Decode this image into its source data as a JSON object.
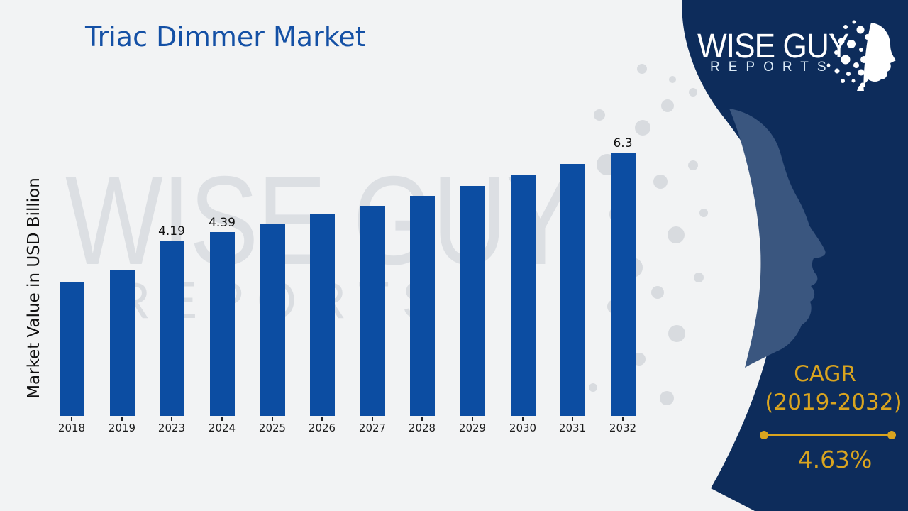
{
  "page": {
    "title": "Triac Dimmer Market"
  },
  "watermark": {
    "line1": "WISE GUY",
    "line2": "REPORTS"
  },
  "logo": {
    "line1": "WISE GUY",
    "line2": "REPORTS"
  },
  "cagr": {
    "label": "CAGR",
    "range": "(2019-2032)",
    "value": "4.63%"
  },
  "colors": {
    "bar": "#0c4da2",
    "panel_navy": "#0d2c5b",
    "gold": "#d9a41f",
    "title_blue": "#1450a5",
    "face_slate": "#3a567f",
    "watermark_gray": "#dcdfe3",
    "background": "#f2f3f4"
  },
  "chart_data": {
    "type": "bar",
    "title": "Triac Dimmer Market",
    "xlabel": "",
    "ylabel": "Market Value in USD Billion",
    "categories": [
      "2018",
      "2019",
      "2023",
      "2024",
      "2025",
      "2026",
      "2027",
      "2028",
      "2029",
      "2030",
      "2031",
      "2032"
    ],
    "values": [
      3.21,
      3.5,
      4.19,
      4.39,
      4.6,
      4.82,
      5.03,
      5.26,
      5.5,
      5.76,
      6.03,
      6.3
    ],
    "point_labels": [
      "",
      "",
      "4.19",
      "4.39",
      "",
      "",
      "",
      "",
      "",
      "",
      "",
      "6.3"
    ],
    "ylim": [
      0,
      7
    ],
    "grid": false,
    "legend": "none",
    "bar_color": "#0c4da2"
  }
}
